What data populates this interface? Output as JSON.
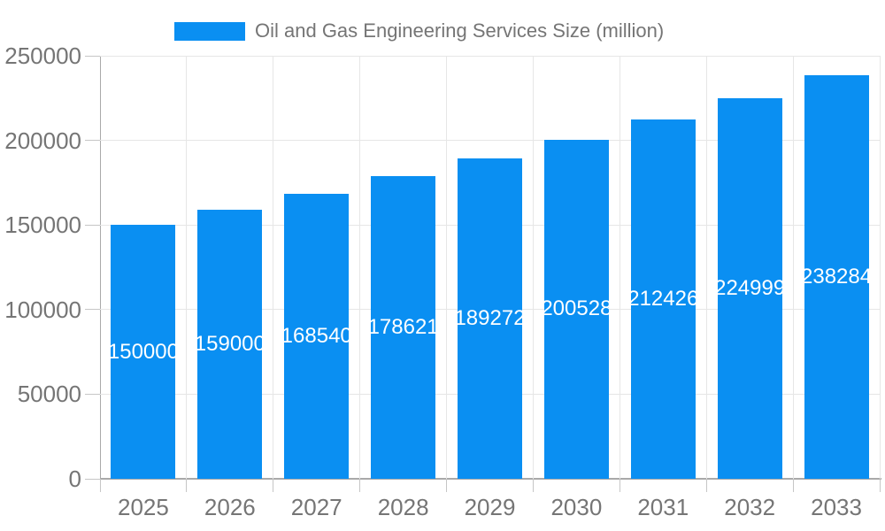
{
  "chart_data": {
    "type": "bar",
    "title": "Oil and Gas Engineering Services Size (million)",
    "categories": [
      "2025",
      "2026",
      "2027",
      "2028",
      "2029",
      "2030",
      "2031",
      "2032",
      "2033"
    ],
    "values": [
      150000,
      159000,
      168540,
      178621,
      189272,
      200528,
      212426,
      224999,
      238284
    ],
    "bar_labels": [
      "150000",
      "159000",
      "168540",
      "178621",
      "189272",
      "200528",
      "212426",
      "224999",
      "238284"
    ],
    "xlabel": "",
    "ylabel": "",
    "ylim": [
      0,
      250000
    ],
    "yticks": [
      0,
      50000,
      100000,
      150000,
      200000,
      250000
    ],
    "ytick_labels": [
      "0",
      "50000",
      "100000",
      "150000",
      "200000",
      "250000"
    ],
    "grid": true,
    "legend_position": "top-center",
    "bar_value_labels_position": "center-inside"
  },
  "colors": {
    "bar": "#0a8ff2",
    "grid": "#e6e6e6",
    "axis": "#a9a9a9",
    "tick": "#c6c6c6",
    "text": "#757575",
    "bar_label": "#ffffff",
    "background": "#ffffff"
  }
}
